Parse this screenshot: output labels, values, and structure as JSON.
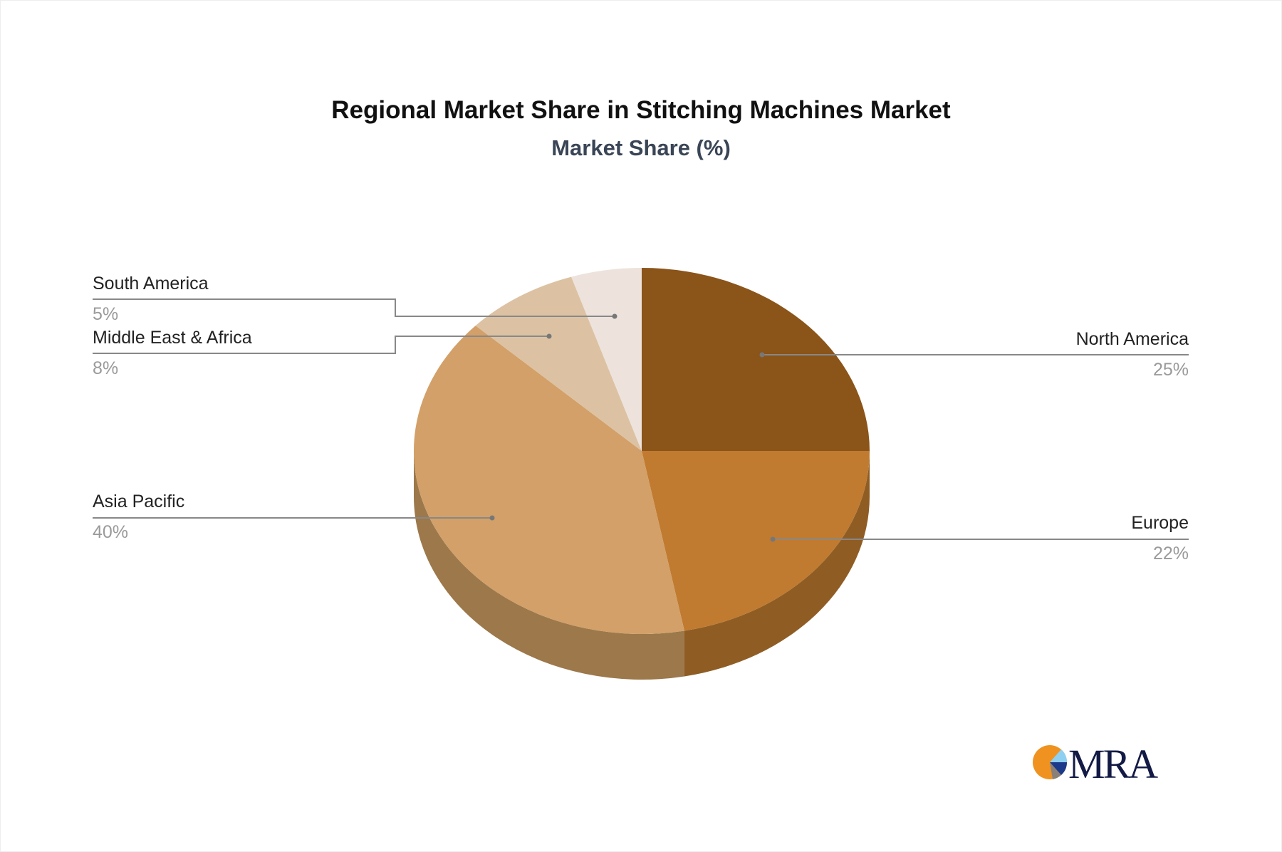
{
  "chart_data": {
    "type": "pie",
    "style": "3d",
    "title": "Regional Market Share in Stitching Machines Market",
    "subtitle": "Market Share (%)",
    "categories": [
      "North America",
      "Europe",
      "Asia Pacific",
      "Middle East & Africa",
      "South America"
    ],
    "values": [
      25,
      22,
      40,
      8,
      5
    ],
    "labels": [
      "25%",
      "22%",
      "40%",
      "8%",
      "5%"
    ],
    "colors": [
      "#8b5419",
      "#c07b30",
      "#d2a068",
      "#dcc2a3",
      "#ede3dc"
    ],
    "side_colors": [
      "#6e4314",
      "#8f5d24",
      "#9c784a",
      "#a89276",
      "#b5aba3"
    ],
    "legend": "none"
  },
  "logo": {
    "text": "MRA"
  }
}
